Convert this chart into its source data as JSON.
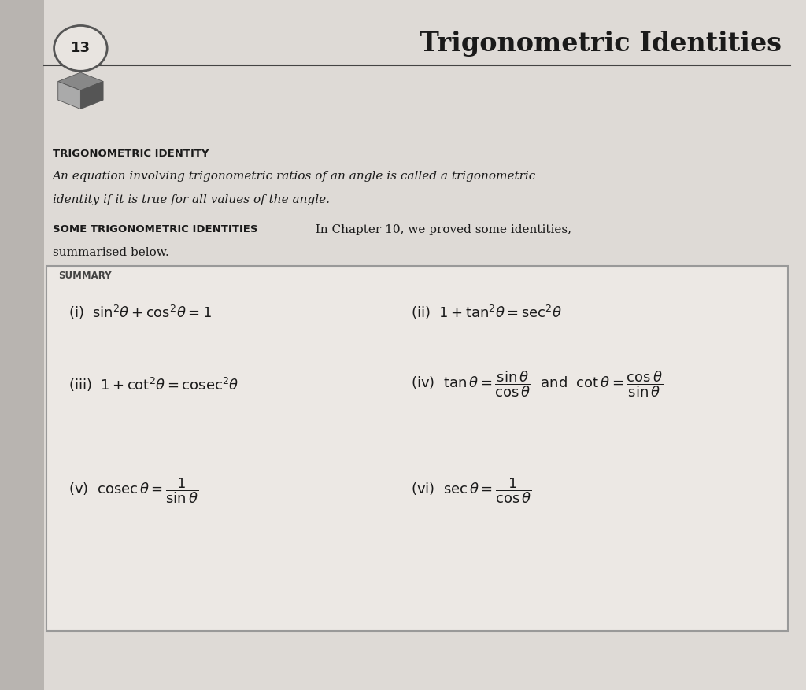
{
  "title": "Trigonometric Identities",
  "chapter_num": "13",
  "section1_header": "TRIGONOMETRIC IDENTITY",
  "section1_line1": "An equation involving trigonometric ratios of an angle is called a trigonometric",
  "section1_line2": "identity if it is true for all values of the angle.",
  "section2_header": "SOME TRIGONOMETRIC IDENTITIES",
  "section2_rest": "  In Chapter 10, we proved some identities,",
  "section2_line2": "summarised below.",
  "summary_header": "SUMMARY",
  "bg_left": "#c8c4c0",
  "bg_right": "#dedad6",
  "box_bg": "#ece8e4",
  "box_edge": "#999999",
  "text_dark": "#1a1a1a",
  "text_gray": "#444444",
  "diamond_dark": "#555555",
  "diamond_mid": "#888888",
  "diamond_light": "#aaaaaa"
}
